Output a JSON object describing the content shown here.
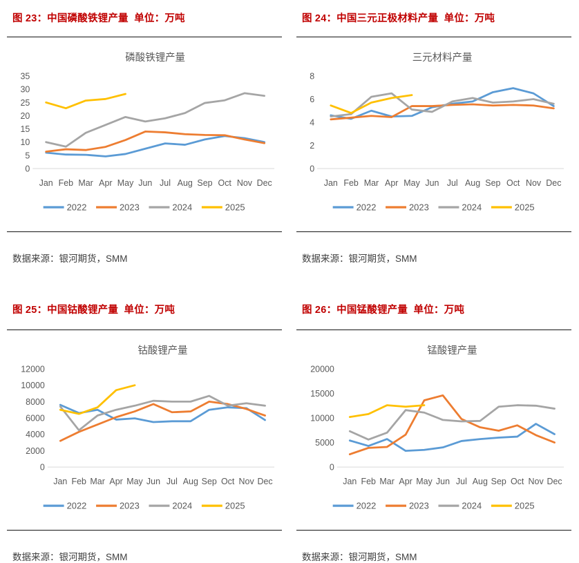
{
  "page": {
    "background": "#ffffff",
    "accent_red": "#C00000",
    "axis_text_color": "#595959",
    "baseline_color": "#D9D9D9"
  },
  "figures": [
    {
      "header": "图 23：中国磷酸铁锂产量  单位：万吨",
      "source": "数据来源：银河期货，SMM"
    },
    {
      "header": "图 24：中国三元正极材料产量  单位：万吨",
      "source": "数据来源：银河期货，SMM"
    },
    {
      "header": "图 25：中国钴酸锂产量  单位：万吨",
      "source": "数据来源：银河期货，SMM"
    },
    {
      "header": "图 26：中国锰酸锂产量  单位：万吨",
      "source": "数据来源：银河期货，SMM"
    }
  ],
  "chart_data": [
    {
      "type": "line",
      "title": "磷酸铁锂产量",
      "xlabel": "",
      "ylabel": "",
      "categories": [
        "Jan",
        "Feb",
        "Mar",
        "Apr",
        "May",
        "Jun",
        "Jul",
        "Aug",
        "Sep",
        "Oct",
        "Nov",
        "Dec"
      ],
      "ylim": [
        0,
        35
      ],
      "ytick_step": 5,
      "grid": false,
      "legend_position": "bottom",
      "series": [
        {
          "name": "2022",
          "color": "#5B9BD5",
          "values": [
            6,
            5.3,
            5.2,
            4.6,
            5.5,
            7.5,
            9.5,
            9,
            11,
            12.3,
            11.5,
            10
          ]
        },
        {
          "name": "2023",
          "color": "#ED7D31",
          "values": [
            6.4,
            7.3,
            7,
            8.2,
            10.8,
            14,
            13.7,
            13,
            12.7,
            12.6,
            11,
            9.6
          ]
        },
        {
          "name": "2024",
          "color": "#A5A5A5",
          "values": [
            10,
            8.3,
            13.5,
            16.5,
            19.5,
            17.8,
            19,
            21,
            24.8,
            25.8,
            28.5,
            27.5
          ]
        },
        {
          "name": "2025",
          "color": "#FFC000",
          "values": [
            25,
            22.8,
            25.7,
            26.3,
            28.2
          ]
        }
      ]
    },
    {
      "type": "line",
      "title": "三元材料产量",
      "xlabel": "",
      "ylabel": "",
      "categories": [
        "Jan",
        "Feb",
        "Mar",
        "Apr",
        "May",
        "Jun",
        "Jul",
        "Aug",
        "Sep",
        "Oct",
        "Nov",
        "Dec"
      ],
      "ylim": [
        0,
        8
      ],
      "ytick_step": 2,
      "grid": false,
      "legend_position": "bottom",
      "series": [
        {
          "name": "2022",
          "color": "#5B9BD5",
          "values": [
            4.6,
            4.3,
            5.0,
            4.5,
            4.55,
            5.3,
            5.6,
            5.8,
            6.6,
            6.95,
            6.5,
            5.4
          ]
        },
        {
          "name": "2023",
          "color": "#ED7D31",
          "values": [
            4.25,
            4.4,
            4.55,
            4.45,
            5.4,
            5.4,
            5.5,
            5.55,
            5.45,
            5.5,
            5.45,
            5.2
          ]
        },
        {
          "name": "2024",
          "color": "#A5A5A5",
          "values": [
            4.5,
            4.7,
            6.2,
            6.5,
            5.1,
            4.9,
            5.8,
            6.1,
            5.7,
            5.8,
            6.0,
            5.6
          ]
        },
        {
          "name": "2025",
          "color": "#FFC000",
          "values": [
            5.45,
            4.8,
            5.7,
            6.1,
            6.35
          ]
        }
      ]
    },
    {
      "type": "line",
      "title": "钴酸锂产量",
      "xlabel": "",
      "ylabel": "",
      "categories": [
        "Jan",
        "Feb",
        "Mar",
        "Apr",
        "May",
        "Jun",
        "Jul",
        "Aug",
        "Sep",
        "Oct",
        "Nov",
        "Dec"
      ],
      "ylim": [
        0,
        12000
      ],
      "ytick_step": 2000,
      "grid": false,
      "legend_position": "bottom",
      "series": [
        {
          "name": "2022",
          "color": "#5B9BD5",
          "values": [
            7600,
            6600,
            7000,
            5800,
            5950,
            5500,
            5600,
            5600,
            7000,
            7300,
            7200,
            5750
          ]
        },
        {
          "name": "2023",
          "color": "#ED7D31",
          "values": [
            3200,
            4300,
            5200,
            6100,
            6800,
            7700,
            6700,
            6800,
            8000,
            7700,
            7100,
            6300
          ]
        },
        {
          "name": "2024",
          "color": "#A5A5A5",
          "values": [
            7400,
            4500,
            6300,
            7000,
            7500,
            8100,
            8000,
            8000,
            8700,
            7500,
            7800,
            7500
          ]
        },
        {
          "name": "2025",
          "color": "#FFC000",
          "values": [
            7000,
            6500,
            7300,
            9400,
            10000
          ]
        }
      ]
    },
    {
      "type": "line",
      "title": "锰酸锂产量",
      "xlabel": "",
      "ylabel": "",
      "categories": [
        "Jan",
        "Feb",
        "Mar",
        "Apr",
        "May",
        "Jun",
        "Jul",
        "Aug",
        "Sep",
        "Oct",
        "Nov",
        "Dec"
      ],
      "ylim": [
        0,
        20000
      ],
      "ytick_step": 5000,
      "grid": false,
      "legend_position": "bottom",
      "series": [
        {
          "name": "2022",
          "color": "#5B9BD5",
          "values": [
            5400,
            4300,
            5700,
            3300,
            3500,
            4000,
            5300,
            5700,
            6000,
            6200,
            8800,
            6700
          ]
        },
        {
          "name": "2023",
          "color": "#ED7D31",
          "values": [
            2600,
            3900,
            4100,
            6600,
            13600,
            14600,
            9800,
            8100,
            7400,
            8500,
            6500,
            5000
          ]
        },
        {
          "name": "2024",
          "color": "#A5A5A5",
          "values": [
            7300,
            5600,
            7000,
            11600,
            11100,
            9600,
            9300,
            9400,
            12300,
            12600,
            12500,
            11900
          ]
        },
        {
          "name": "2025",
          "color": "#FFC000",
          "values": [
            10200,
            10800,
            12600,
            12300,
            12600
          ]
        }
      ]
    }
  ]
}
